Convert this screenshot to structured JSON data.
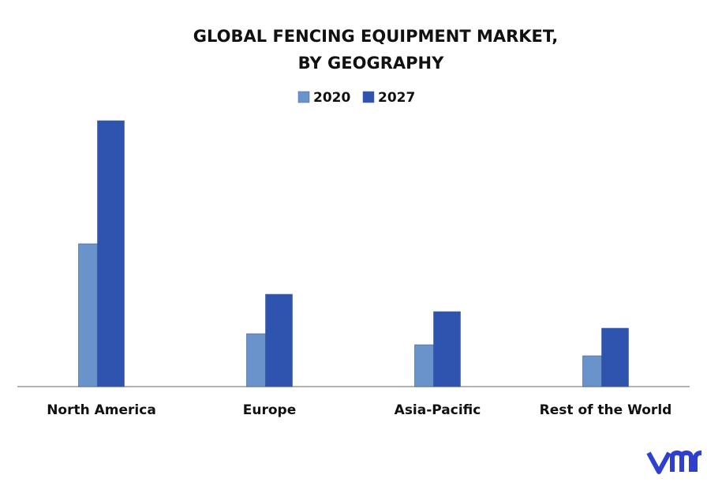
{
  "chart_data": {
    "type": "bar",
    "title": [
      "GLOBAL FENCING EQUIPMENT MARKET,",
      "BY GEOGRAPHY"
    ],
    "categories": [
      "North America",
      "Europe",
      "Asia-Pacific",
      "Rest of the World"
    ],
    "series": [
      {
        "name": "2020",
        "color": "#6a93cc",
        "values": [
          181,
          67,
          53,
          39
        ]
      },
      {
        "name": "2027",
        "color": "#2e54b0",
        "values": [
          337,
          117,
          95,
          74
        ]
      }
    ],
    "ylim": [
      0,
      350
    ]
  }
}
